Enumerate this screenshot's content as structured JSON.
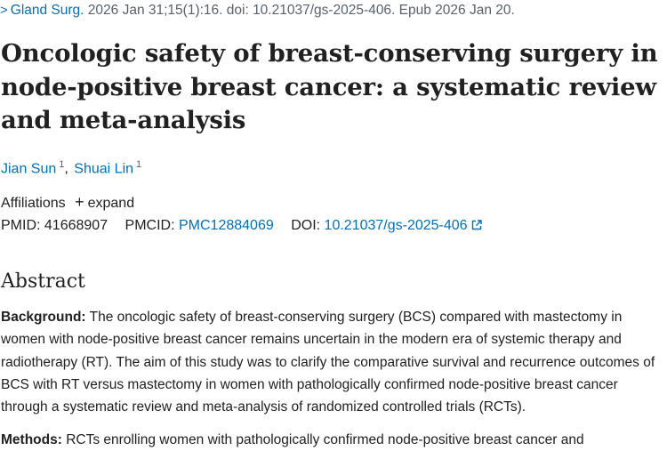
{
  "citation": {
    "chevron": ">",
    "journal": "Gland Surg.",
    "details": " 2026 Jan 31;15(1):16. doi: 10.21037/gs-2025-406. Epub 2026 Jan 20."
  },
  "title": "Oncologic safety of breast-conserving surgery in node-positive breast cancer: a systematic review and meta-analysis",
  "authors": [
    {
      "name": "Jian Sun",
      "sup": "1"
    },
    {
      "name": "Shuai Lin",
      "sup": "1"
    }
  ],
  "affiliations": {
    "label": "Affiliations",
    "expand_symbol": "+",
    "expand_label": "expand"
  },
  "identifiers": {
    "pmid_label": "PMID:",
    "pmid": "41668907",
    "pmcid_label": "PMCID:",
    "pmcid": "PMC12884069",
    "doi_label": "DOI:",
    "doi": "10.21037/gs-2025-406"
  },
  "abstract": {
    "heading": "Abstract",
    "background_label": "Background:",
    "background_text": " The oncologic safety of breast-conserving surgery (BCS) compared with mastectomy in women with node-positive breast cancer remains uncertain in the modern era of systemic therapy and radiotherapy (RT). The aim of this study was to clarify the comparative survival and recurrence outcomes of BCS with RT versus mastectomy in women with pathologically confirmed node-positive breast cancer through a systematic review and meta-analysis of randomized controlled trials (RCTs).",
    "methods_label": "Methods:",
    "methods_text": " RCTs enrolling women with pathologically confirmed node-positive breast cancer and"
  },
  "colors": {
    "link": "#0071bc",
    "text": "#212121",
    "muted": "#5b616b"
  }
}
